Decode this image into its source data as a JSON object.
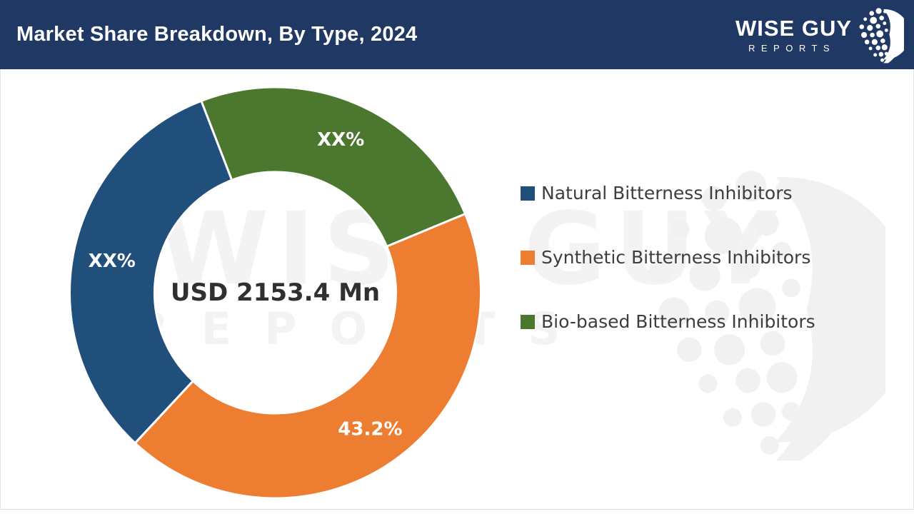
{
  "header": {
    "title": "Market Share Breakdown, By Type, 2024",
    "logo": {
      "line1": "WISE GUY",
      "line2": "REPORTS"
    }
  },
  "colors": {
    "header_bg": "#1F3864",
    "center_text": "#303030",
    "legend_text": "#3D3D3D"
  },
  "chart_data": {
    "type": "pie",
    "subtype": "donut",
    "title": "Market Share Breakdown, By Type, 2024",
    "center_label": "USD 2153.4 Mn",
    "total_value": 2153.4,
    "units": "USD Mn",
    "legend_position": "right",
    "start_angle_deg_clockwise_from_top": -21.1,
    "draw_order": [
      2,
      1,
      0
    ],
    "slices": [
      {
        "name": "Natural Bitterness Inhibitors",
        "value_pct": 32.2,
        "data_label": "XX%",
        "color": "#204F7B"
      },
      {
        "name": "Synthetic Bitterness Inhibitors",
        "value_pct": 43.2,
        "data_label": "43.2%",
        "color": "#ED7D31"
      },
      {
        "name": "Bio-based Bitterness Inhibitors",
        "value_pct": 24.6,
        "data_label": "XX%",
        "color": "#4C772E"
      }
    ],
    "legend": [
      {
        "label": "Natural Bitterness Inhibitors",
        "color": "#204F7B"
      },
      {
        "label": "Synthetic Bitterness Inhibitors",
        "color": "#ED7D31"
      },
      {
        "label": "Bio-based Bitterness Inhibitors",
        "color": "#4C772E"
      }
    ]
  },
  "watermark": {
    "line1": "WISE GUY",
    "line2": "REPORTS"
  }
}
